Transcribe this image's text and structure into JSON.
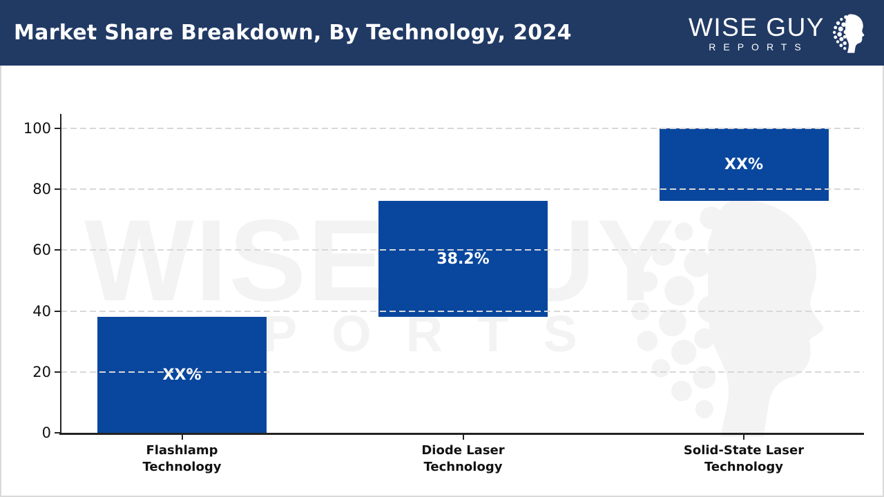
{
  "header": {
    "title": "Market Share Breakdown, By Technology, 2024",
    "brand": {
      "name": "WISE GUY",
      "subtitle": "REPORTS",
      "icon": "dotted-face-profile"
    }
  },
  "watermark": {
    "line1": "WISE GUY",
    "line2": "REPORTS"
  },
  "chart_data": {
    "type": "bar",
    "subtype": "floating-waterfall-segments",
    "title": "Market Share Breakdown, By Technology, 2024",
    "categories": [
      "Flashlamp\nTechnology",
      "Diode Laser\nTechnology",
      "Solid-State Laser\nTechnology"
    ],
    "series": [
      {
        "name": "Market share (%)",
        "segments": [
          {
            "category": "Flashlamp Technology",
            "start": 0,
            "end": 38,
            "label": "XX%"
          },
          {
            "category": "Diode Laser Technology",
            "start": 38,
            "end": 76.2,
            "label": "38.2%"
          },
          {
            "category": "Solid-State Laser Technology",
            "start": 76.2,
            "end": 100,
            "label": "XX%"
          }
        ]
      }
    ],
    "yticks": [
      0,
      20,
      40,
      60,
      80,
      100
    ],
    "ylim": [
      0,
      104.8
    ],
    "xlabel": "",
    "ylabel": "",
    "grid": "horizontal-dashed",
    "grid_over_bars": true,
    "legend": "none",
    "bar_color": "#09479e",
    "bar_label_color": "#ffffff"
  },
  "colors": {
    "header_bg": "#213a64",
    "bar": "#09479e",
    "axis": "#222222",
    "grid": "#d8d8d8",
    "watermark": "#f3f3f4",
    "page_border": "#d9d9d9",
    "text": "#111111"
  }
}
